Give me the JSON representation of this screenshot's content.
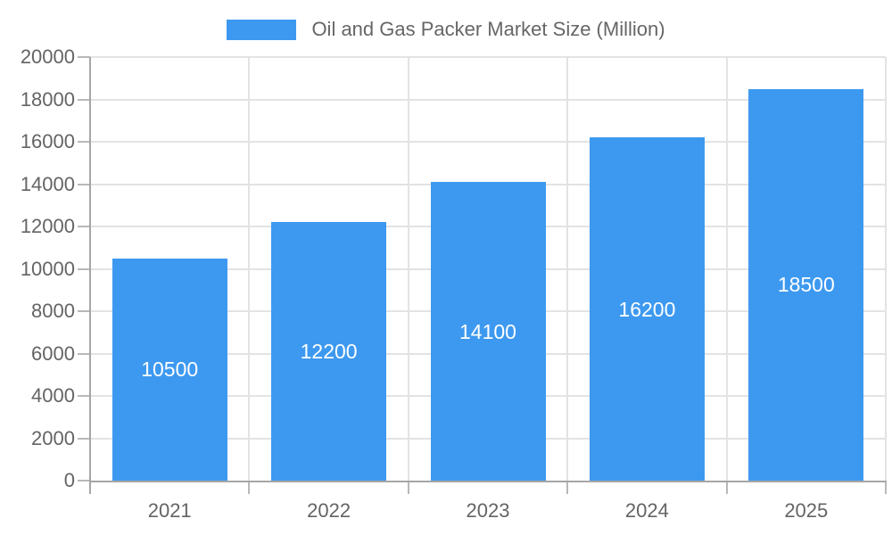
{
  "legend": {
    "label": "Oil and Gas Packer Market Size (Million)",
    "swatch_color": "#3D99F0"
  },
  "chart_data": {
    "type": "bar",
    "title": "Oil and Gas Packer Market Size (Million)",
    "categories": [
      "2021",
      "2022",
      "2023",
      "2024",
      "2025"
    ],
    "series": [
      {
        "name": "Oil and Gas Packer Market Size (Million)",
        "values": [
          10500,
          12200,
          14100,
          16200,
          18500
        ]
      }
    ],
    "value_labels": [
      "10500",
      "12200",
      "14100",
      "16200",
      "18500"
    ],
    "xlabel": "",
    "ylabel": "",
    "ylim": [
      0,
      20000
    ],
    "ytick_step": 2000,
    "yticks": [
      0,
      2000,
      4000,
      6000,
      8000,
      10000,
      12000,
      14000,
      16000,
      18000,
      20000
    ],
    "grid": true,
    "legend_position": "top",
    "bar_color": "#3D99F0",
    "value_label_color": "#ffffff",
    "axis_label_color": "#646464",
    "gridline_color": "#e3e3e3",
    "axis_line_color": "#a6a6a6",
    "background_color": "#ffffff"
  }
}
